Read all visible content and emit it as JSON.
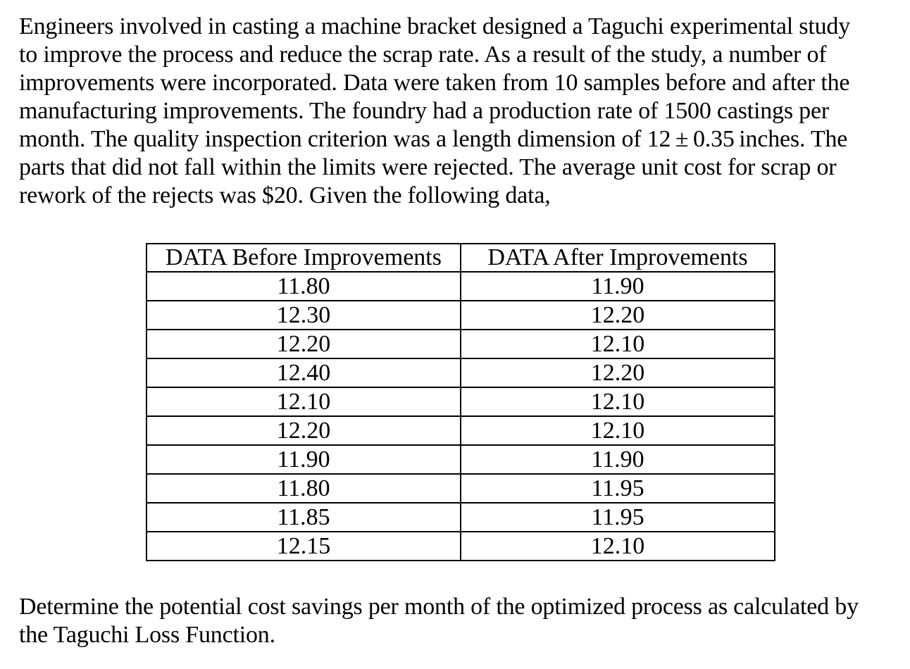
{
  "document": {
    "intro_lines": [
      "Engineers involved in casting a machine bracket designed a Taguchi experimental study",
      "to improve the process and reduce the scrap rate. As a result of the study, a number of",
      "improvements were incorporated. Data were taken from 10 samples before and after the",
      "manufacturing improvements. The foundry had a production rate of 1500 castings per",
      "month. The quality inspection criterion was a length dimension of 12 ± 0.35 inches. The",
      "parts that did not fall within the limits were rejected. The average unit cost for scrap or",
      "rework of the rejects was $20. Given the following data,"
    ],
    "table": {
      "headers": [
        "DATA Before Improvements",
        "DATA After Improvements"
      ],
      "rows": [
        [
          "11.80",
          "11.90"
        ],
        [
          "12.30",
          "12.20"
        ],
        [
          "12.20",
          "12.10"
        ],
        [
          "12.40",
          "12.20"
        ],
        [
          "12.10",
          "12.10"
        ],
        [
          "12.20",
          "12.10"
        ],
        [
          "11.90",
          "11.90"
        ],
        [
          "11.80",
          "11.95"
        ],
        [
          "11.85",
          "11.95"
        ],
        [
          "12.15",
          "12.10"
        ]
      ]
    },
    "question_lines": [
      "Determine the potential cost savings per month of the optimized process as calculated by",
      "the Taguchi Loss Function."
    ]
  }
}
